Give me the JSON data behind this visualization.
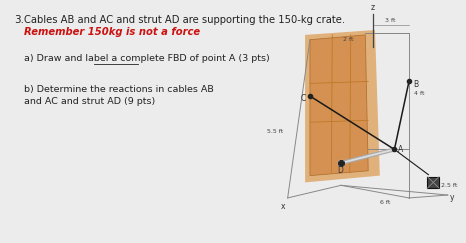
{
  "bg_color": "#ececec",
  "text_color": "#222222",
  "red_text_color": "#cc1111",
  "title_line1": "Cables AB and AC and strut AD are supporting the 150-kg crate.",
  "title_line2": "Remember 150kg is not a force",
  "part_a": "a) Draw and label a complete FBD of point A (3 pts)",
  "part_b_line1": "b) Determine the reactions in cables AB",
  "part_b_line2": "and AC and strut AD (9 pts)",
  "num": "3.",
  "diagram": {
    "blob_color": "#dfa96b",
    "wall_face_color": "#d49050",
    "wall_edge_color": "#b07030",
    "wall_grid_color": "#c07828",
    "frame_color": "#888888",
    "cable_color": "#1a1a1a",
    "strut_outer_color": "#aaaaaa",
    "strut_inner_color": "#dddddd",
    "axis_color": "#555555",
    "label_color": "#333333",
    "crate_color": "#444444",
    "crate_edge_color": "#111111",
    "dim_color": "#444444",
    "z_line_color": "#555555",
    "point_color": "#222222"
  }
}
